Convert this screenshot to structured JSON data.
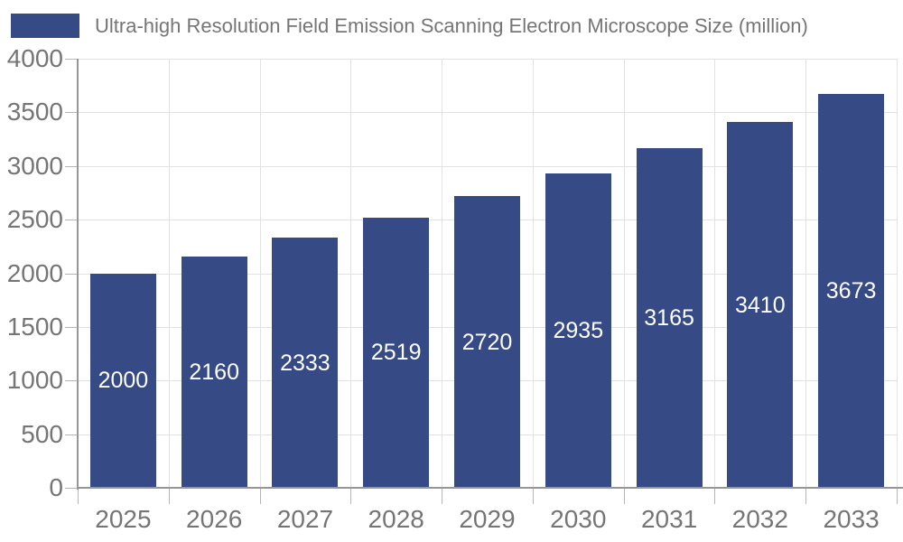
{
  "legend": {
    "label": "Ultra-high Resolution Field Emission Scanning Electron Microscope Size (million)"
  },
  "chart_data": {
    "type": "bar",
    "title": "Ultra-high Resolution Field Emission Scanning Electron Microscope Size (million)",
    "categories": [
      "2025",
      "2026",
      "2027",
      "2028",
      "2029",
      "2030",
      "2031",
      "2032",
      "2033"
    ],
    "values": [
      2000,
      2160,
      2333,
      2519,
      2720,
      2935,
      3165,
      3410,
      3673
    ],
    "series": [
      {
        "name": "Ultra-high Resolution Field Emission Scanning Electron Microscope Size (million)",
        "values": [
          2000,
          2160,
          2333,
          2519,
          2720,
          2935,
          3165,
          3410,
          3673
        ]
      }
    ],
    "xlabel": "",
    "ylabel": "",
    "ylim": [
      0,
      4000
    ],
    "yticks": [
      0,
      500,
      1000,
      1500,
      2000,
      2500,
      3000,
      3500,
      4000
    ],
    "grid": true,
    "legend_position": "top-left",
    "bar_labels_inside": true,
    "colors": {
      "bar": "#364A85",
      "grid": "#e2e2e2",
      "axis": "#969696",
      "tick": "#b5b5b5",
      "tick_label": "#757575",
      "bar_label": "#ffffff",
      "legend_text": "#757575"
    }
  }
}
